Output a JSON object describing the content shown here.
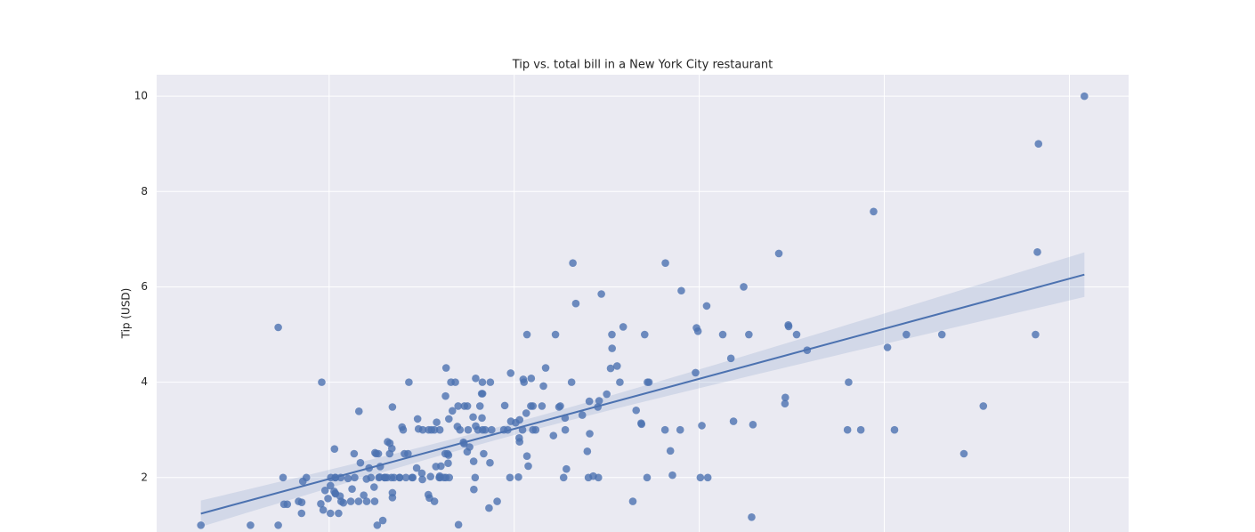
{
  "chart_data": {
    "type": "scatter",
    "title": "Tip vs. total bill in a New York City restaurant",
    "y_label": "Tip (USD)",
    "color": "#4c72b0",
    "regression": true,
    "grid": true,
    "xlim": [
      0.68,
      53.2
    ],
    "xticks": [
      10,
      20,
      30,
      40,
      50
    ],
    "ylim": [
      0.55,
      10.45
    ],
    "yticks": [
      2,
      4,
      6,
      8,
      10
    ],
    "x": [
      16.99,
      10.34,
      21.01,
      23.68,
      24.59,
      25.29,
      8.77,
      26.88,
      15.04,
      14.78,
      10.27,
      35.26,
      15.42,
      18.43,
      14.83,
      21.58,
      10.33,
      16.29,
      16.97,
      20.65,
      17.92,
      20.29,
      15.77,
      39.42,
      19.82,
      17.81,
      13.37,
      12.69,
      21.7,
      19.65,
      9.55,
      18.35,
      15.06,
      20.69,
      17.78,
      24.06,
      16.31,
      16.93,
      18.69,
      31.27,
      16.04,
      17.46,
      13.94,
      9.68,
      30.4,
      18.29,
      22.23,
      32.4,
      28.55,
      18.04,
      12.54,
      10.29,
      34.81,
      9.94,
      25.56,
      19.49,
      38.01,
      26.41,
      11.24,
      48.27,
      20.29,
      13.81,
      11.02,
      18.29,
      17.59,
      20.08,
      16.45,
      3.07,
      20.23,
      15.01,
      12.02,
      17.07,
      26.86,
      25.28,
      14.73,
      10.51,
      17.92,
      27.2,
      22.76,
      17.29,
      19.44,
      16.66,
      10.07,
      32.68,
      15.98,
      34.83,
      13.03,
      18.28,
      24.71,
      21.16,
      28.97,
      22.49,
      5.75,
      16.32,
      22.75,
      40.17,
      27.28,
      12.03,
      21.01,
      12.46,
      11.35,
      15.38,
      44.3,
      22.42,
      20.92,
      15.36,
      20.49,
      25.21,
      18.24,
      14.31,
      14.0,
      7.25,
      38.07,
      23.95,
      25.71,
      17.31,
      29.93,
      10.65,
      12.43,
      24.08,
      11.69,
      13.42,
      14.26,
      15.95,
      12.48,
      29.8,
      8.52,
      14.52,
      11.38,
      22.82,
      19.08,
      20.27,
      11.17,
      12.26,
      18.26,
      8.51,
      10.33,
      14.15,
      16.0,
      13.16,
      17.47,
      34.3,
      41.19,
      27.05,
      16.43,
      8.35,
      18.64,
      11.87,
      9.78,
      7.51,
      14.07,
      13.13,
      17.26,
      24.55,
      19.77,
      29.85,
      48.17,
      25.0,
      13.39,
      16.49,
      21.5,
      12.66,
      16.21,
      13.81,
      17.51,
      24.52,
      20.76,
      31.71,
      10.59,
      10.63,
      50.81,
      15.81,
      7.25,
      31.85,
      16.82,
      32.9,
      17.89,
      14.48,
      9.6,
      34.63,
      34.65,
      23.33,
      45.35,
      23.17,
      40.55,
      20.69,
      20.9,
      30.46,
      18.15,
      23.1,
      15.69,
      19.81,
      28.44,
      15.48,
      16.58,
      7.56,
      10.34,
      43.11,
      13.0,
      13.51,
      18.71,
      12.74,
      13.0,
      16.4,
      20.53,
      16.47,
      26.59,
      38.73,
      24.27,
      12.76,
      30.06,
      25.89,
      48.33,
      13.27,
      28.17,
      12.9,
      28.15,
      11.59,
      7.74,
      30.14,
      12.16,
      13.42,
      8.58,
      15.98,
      13.42,
      16.27,
      10.09,
      20.45,
      13.28,
      22.12,
      24.01,
      15.69,
      11.61,
      10.77,
      15.53,
      10.07,
      12.6,
      32.83,
      35.83,
      29.03,
      27.18,
      22.67,
      17.82,
      18.78
    ],
    "values": [
      1.01,
      1.66,
      3.5,
      3.31,
      3.61,
      4.71,
      2.0,
      3.12,
      1.96,
      3.23,
      1.71,
      5.0,
      1.57,
      3.0,
      3.02,
      3.92,
      1.67,
      3.71,
      3.5,
      3.35,
      4.08,
      2.75,
      2.23,
      7.58,
      3.18,
      2.34,
      2.0,
      2.0,
      4.3,
      3.0,
      1.45,
      2.5,
      3.0,
      2.45,
      3.27,
      3.6,
      2.0,
      3.07,
      2.31,
      5.0,
      2.24,
      2.54,
      3.06,
      1.32,
      5.6,
      3.0,
      5.0,
      6.0,
      2.05,
      3.0,
      2.5,
      2.6,
      5.2,
      1.56,
      4.34,
      3.51,
      3.0,
      1.5,
      1.76,
      6.73,
      3.21,
      2.0,
      1.98,
      3.76,
      2.64,
      3.15,
      2.47,
      1.0,
      2.01,
      2.09,
      1.97,
      3.0,
      3.14,
      5.0,
      2.2,
      1.25,
      3.08,
      4.0,
      3.0,
      2.71,
      3.0,
      3.4,
      1.83,
      5.0,
      2.03,
      5.17,
      2.0,
      4.0,
      5.85,
      3.0,
      3.0,
      3.5,
      1.0,
      4.3,
      3.25,
      4.73,
      4.0,
      1.5,
      3.0,
      1.5,
      2.5,
      3.0,
      2.5,
      3.48,
      4.08,
      1.64,
      4.06,
      4.29,
      3.76,
      4.0,
      3.0,
      1.0,
      4.0,
      2.55,
      4.0,
      3.5,
      5.07,
      1.5,
      1.8,
      2.92,
      2.31,
      1.68,
      2.5,
      2.0,
      2.52,
      4.2,
      1.48,
      2.0,
      2.0,
      2.18,
      1.5,
      2.83,
      1.5,
      2.0,
      3.25,
      1.25,
      2.0,
      2.0,
      2.0,
      2.75,
      3.5,
      6.7,
      5.0,
      5.0,
      2.3,
      1.5,
      1.36,
      1.63,
      1.73,
      2.0,
      2.5,
      2.0,
      2.74,
      2.0,
      2.0,
      5.14,
      5.0,
      3.75,
      2.61,
      2.0,
      3.5,
      2.5,
      2.0,
      2.0,
      3.0,
      3.48,
      2.24,
      4.5,
      1.61,
      2.0,
      10.0,
      3.16,
      5.15,
      3.18,
      4.0,
      3.11,
      2.0,
      2.0,
      4.0,
      3.55,
      3.68,
      5.65,
      3.5,
      6.5,
      3.0,
      5.0,
      3.5,
      2.0,
      3.5,
      4.0,
      1.5,
      4.19,
      2.56,
      2.02,
      4.0,
      1.44,
      2.0,
      5.0,
      2.0,
      2.0,
      4.0,
      2.01,
      2.0,
      2.5,
      4.0,
      3.23,
      3.41,
      3.0,
      2.03,
      2.23,
      2.0,
      5.16,
      9.0,
      2.5,
      6.5,
      1.1,
      3.0,
      1.5,
      1.44,
      3.09,
      2.2,
      3.48,
      1.92,
      3.0,
      1.58,
      2.5,
      2.0,
      3.0,
      2.72,
      2.88,
      2.0,
      3.0,
      3.39,
      1.47,
      3.0,
      1.25,
      1.0,
      1.17,
      4.67,
      5.92,
      2.0,
      2.0,
      1.75,
      3.0
    ]
  }
}
